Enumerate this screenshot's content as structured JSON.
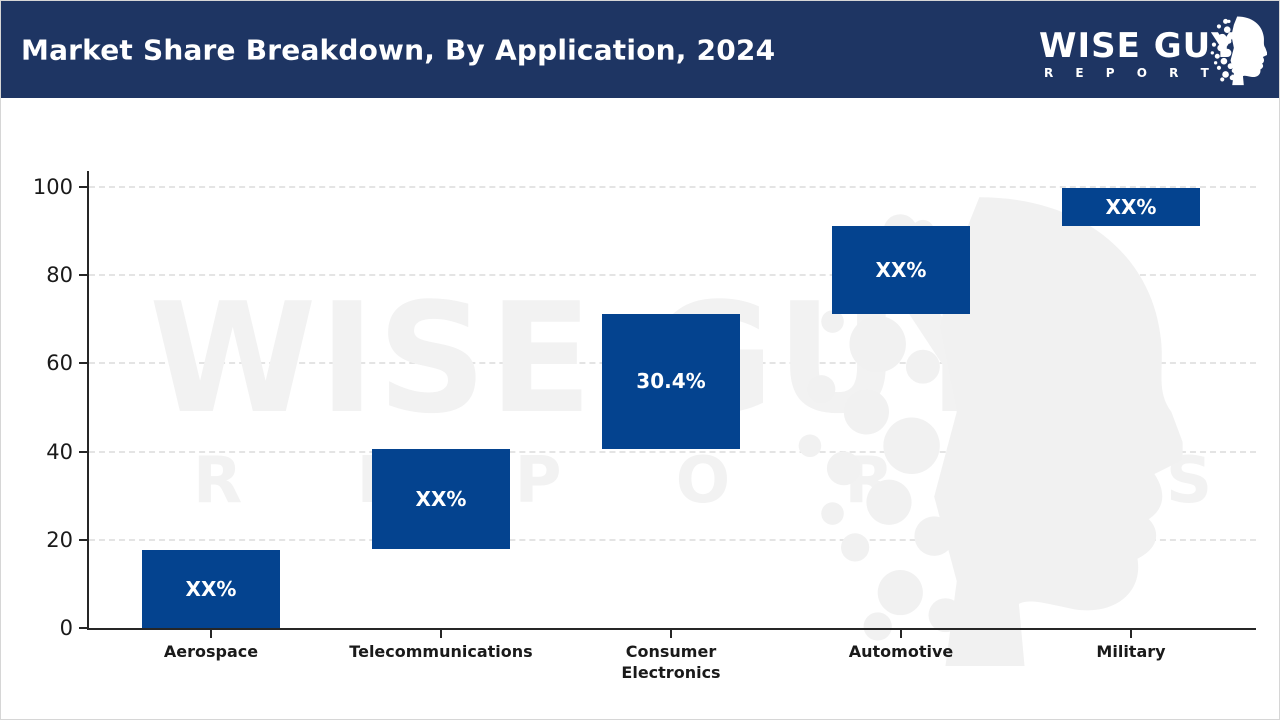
{
  "header": {
    "title": "Market Share Breakdown, By Application, 2024",
    "bg_color": "#1e3563",
    "logo": {
      "name_line": "WISE GUY",
      "sub_line": "R E P O R T S"
    }
  },
  "watermark": {
    "name_line": "WISE GUY",
    "sub_line": "R E P O R T S"
  },
  "chart_data": {
    "type": "bar",
    "variant": "waterfall",
    "title": "Market Share Breakdown, By Application, 2024",
    "categories": [
      "Aerospace",
      "Telecommunications",
      "Consumer\nElectronics",
      "Automotive",
      "Military"
    ],
    "segments": [
      {
        "category": "Aerospace",
        "start": 0,
        "end": 17.8,
        "label": "XX%"
      },
      {
        "category": "Telecommunications",
        "start": 17.8,
        "end": 40.7,
        "label": "XX%"
      },
      {
        "category": "Consumer Electronics",
        "start": 40.7,
        "end": 71.1,
        "label": "30.4%"
      },
      {
        "category": "Automotive",
        "start": 71.1,
        "end": 91.2,
        "label": "XX%"
      },
      {
        "category": "Military",
        "start": 91.2,
        "end": 99.8,
        "label": "XX%"
      }
    ],
    "yticks": [
      0,
      20,
      40,
      60,
      80,
      100
    ],
    "ylim": [
      0,
      103.6
    ],
    "xlabel": "",
    "ylabel": "",
    "grid": true,
    "gridline_style": "dashed",
    "legend": "none",
    "bar_color": "#04438f",
    "bar_label_color": "#ffffff",
    "axis_color": "#262626",
    "tick_label_color": "#1a1a1a",
    "watermark_color": "#f2f2f2"
  }
}
